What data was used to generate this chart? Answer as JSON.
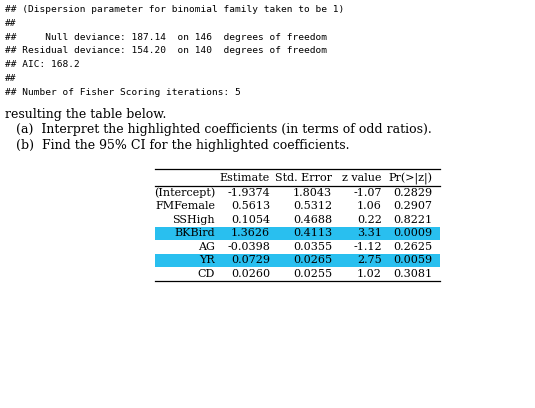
{
  "code_lines": [
    "## (Dispersion parameter for binomial family taken to be 1)",
    "##",
    "##     Null deviance: 187.14  on 146  degrees of freedom",
    "## Residual deviance: 154.20  on 140  degrees of freedom",
    "## AIC: 168.2",
    "##",
    "## Number of Fisher Scoring iterations: 5"
  ],
  "prose_line": "resulting the table below.",
  "question_lines": [
    "(a)  Interpret the highlighted coefficients (in terms of odd ratios).",
    "(b)  Find the 95% CI for the highlighted coefficients."
  ],
  "table_headers": [
    "",
    "Estimate",
    "Std. Error",
    "z value",
    "Pr(>|z|)"
  ],
  "table_rows": [
    {
      "label": "(Intercept)",
      "vals": [
        "-1.9374",
        "1.8043",
        "-1.07",
        "0.2829"
      ],
      "highlight": false
    },
    {
      "label": "FMFemale",
      "vals": [
        "0.5613",
        "0.5312",
        "1.06",
        "0.2907"
      ],
      "highlight": false
    },
    {
      "label": "SSHigh",
      "vals": [
        "0.1054",
        "0.4688",
        "0.22",
        "0.8221"
      ],
      "highlight": false
    },
    {
      "label": "BKBird",
      "vals": [
        "1.3626",
        "0.4113",
        "3.31",
        "0.0009"
      ],
      "highlight": true
    },
    {
      "label": "AG",
      "vals": [
        "-0.0398",
        "0.0355",
        "-1.12",
        "0.2625"
      ],
      "highlight": false
    },
    {
      "label": "YR",
      "vals": [
        "0.0729",
        "0.0265",
        "2.75",
        "0.0059"
      ],
      "highlight": true
    },
    {
      "label": "CD",
      "vals": [
        "0.0260",
        "0.0255",
        "1.02",
        "0.3081"
      ],
      "highlight": false
    }
  ],
  "highlight_color": "#29BFEF",
  "code_font_size": 6.8,
  "prose_font_size": 9.0,
  "question_font_size": 9.0,
  "table_font_size": 8.0,
  "bg_color": "#ffffff"
}
